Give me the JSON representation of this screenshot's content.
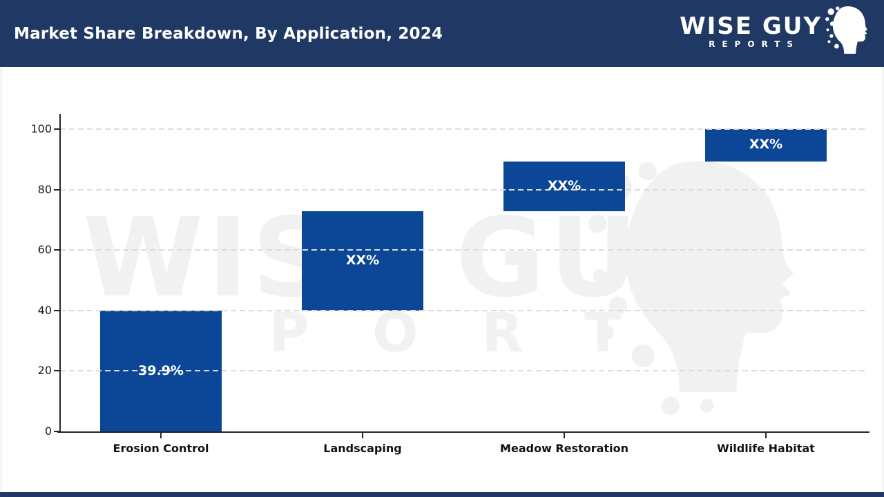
{
  "header": {
    "title": "Market Share Breakdown, By Application, 2024",
    "logo": {
      "line1": "WISE GUY",
      "line2": "REPORTS"
    }
  },
  "watermark": {
    "line1": "WISE GU·Y",
    "line2": "PORTS"
  },
  "chart_data": {
    "type": "bar",
    "subtype": "waterfall",
    "title": "Market Share Breakdown, By Application, 2024",
    "categories": [
      "Erosion Control",
      "Landscaping",
      "Meadow Restoration",
      "Wildlife Habitat"
    ],
    "bars": [
      {
        "category": "Erosion Control",
        "start": 0,
        "end": 39.9,
        "label": "39.9%"
      },
      {
        "category": "Landscaping",
        "start": 39.9,
        "end": 72.8,
        "label": "XX%"
      },
      {
        "category": "Meadow Restoration",
        "start": 72.8,
        "end": 89.3,
        "label": "XX%"
      },
      {
        "category": "Wildlife Habitat",
        "start": 89.3,
        "end": 100,
        "label": "XX%"
      }
    ],
    "y_ticks": [
      0,
      20,
      40,
      60,
      80,
      100
    ],
    "ylim": [
      0,
      105
    ],
    "grid": true,
    "legend": false,
    "xlabel": "",
    "ylabel": "",
    "bar_color": "#0B4796",
    "grid_color": "#dcdcdc",
    "header_color": "#1F3864"
  }
}
